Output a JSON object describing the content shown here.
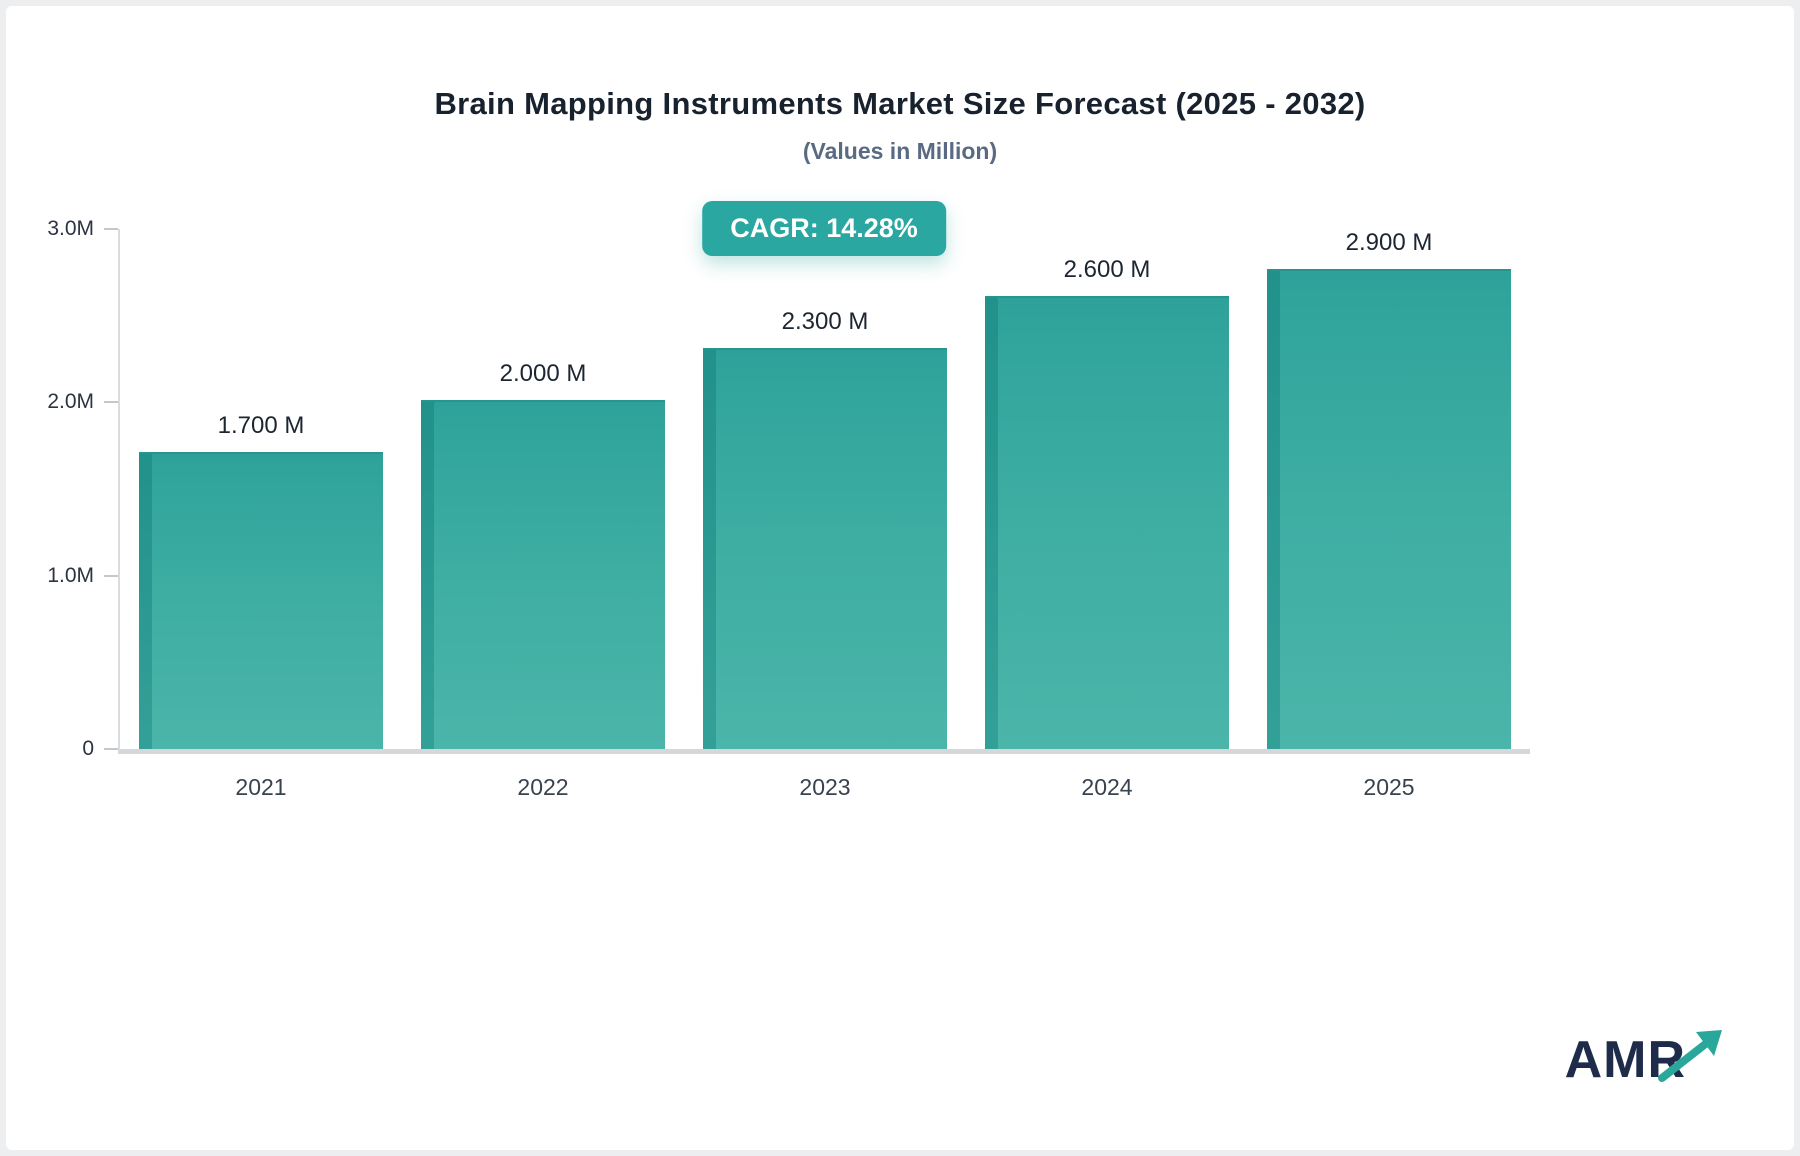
{
  "chart_data": {
    "type": "bar",
    "title": "Brain Mapping Instruments Market Size Forecast (2025 - 2032)",
    "subtitle": "(Values in Million)",
    "badge": "CAGR: 14.28%",
    "categories": [
      "2021",
      "2022",
      "2023",
      "2024",
      "2025"
    ],
    "values": [
      1.7,
      2.0,
      2.3,
      2.6,
      2.9
    ],
    "value_labels": [
      "1.700 M",
      "2.000 M",
      "2.300 M",
      "2.600 M",
      "2.900 M"
    ],
    "y_ticks": [
      {
        "label": "3.0M",
        "v": 3.0
      },
      {
        "label": "2.0M",
        "v": 2.0
      },
      {
        "label": "1.0M",
        "v": 1.0
      },
      {
        "label": "0",
        "v": 0
      }
    ],
    "ylim": [
      0,
      3.0
    ],
    "xlabel": "",
    "ylabel": "",
    "legend": "none",
    "grid": "off",
    "bar_color_top": "#2ea29a",
    "bar_color_bottom": "#4bb5aa",
    "accent_color": "#2aa7a0"
  },
  "logo": {
    "text": "AMR"
  }
}
